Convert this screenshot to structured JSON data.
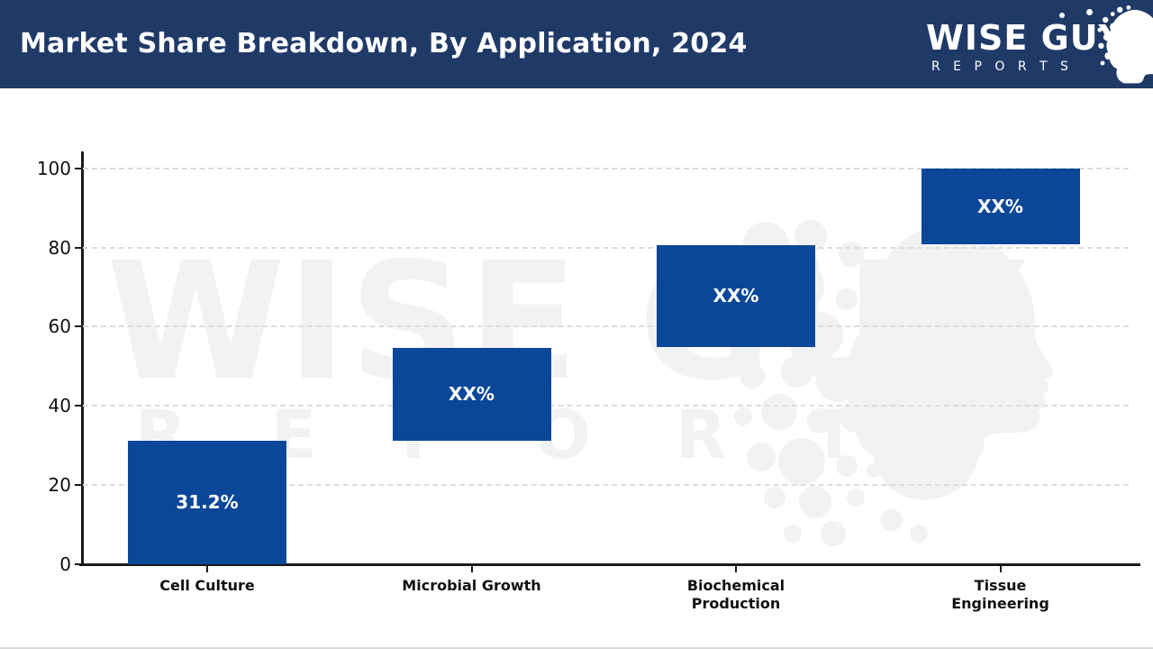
{
  "header": {
    "title": "Market Share Breakdown, By Application, 2024",
    "logo": {
      "name": "WISE GUY",
      "sub": "R E P O R T S"
    }
  },
  "watermark": {
    "name": "WISE GUY",
    "sub": "R E P O R T S"
  },
  "chart_data": {
    "type": "bar",
    "subtype": "floating-waterfall",
    "title": "Market Share Breakdown, By Application, 2024",
    "categories": [
      "Cell Culture",
      "Microbial Growth",
      "Biochemical Production",
      "Tissue Engineering"
    ],
    "segments": [
      {
        "category": "Cell Culture",
        "start": 0,
        "end": 31.2,
        "label": "31.2%"
      },
      {
        "category": "Microbial Growth",
        "start": 31.2,
        "end": 54.7,
        "label": "XX%"
      },
      {
        "category": "Biochemical Production",
        "start": 54.9,
        "end": 80.6,
        "label": "XX%"
      },
      {
        "category": "Tissue Engineering",
        "start": 80.9,
        "end": 100,
        "label": "XX%"
      }
    ],
    "yticks": [
      0,
      20,
      40,
      60,
      80,
      100
    ],
    "ylim": [
      0,
      103.8
    ],
    "xlabel": "",
    "ylabel": "",
    "grid": "horizontal-dashed",
    "legend": "none",
    "colors": {
      "bar": "#0b4798",
      "bar_label": "#ffffff",
      "grid": "#dcdcdc",
      "axis": "#1a1a1a",
      "tick_label": "#111111",
      "header_bg": "#203a68",
      "header_text": "#ffffff",
      "watermark": "#f1f2f4"
    }
  }
}
